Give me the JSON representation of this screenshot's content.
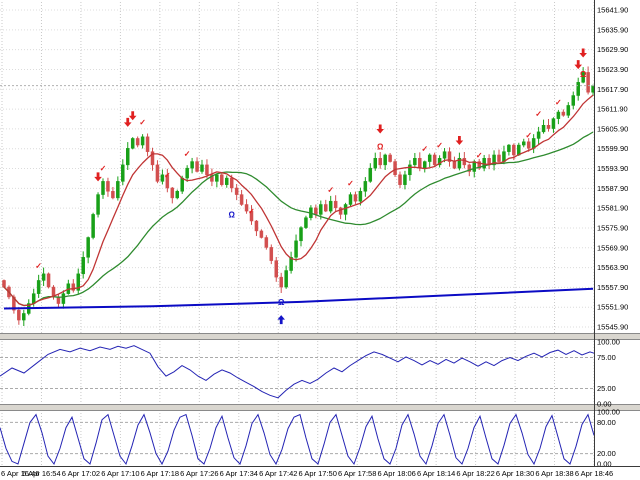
{
  "chart_data": {
    "type": "candlestick",
    "time_axis_labels": [
      "6 Apr 16:46",
      "6 Apr 16:54",
      "6 Apr 17:02",
      "6 Apr 17:10",
      "6 Apr 17:18",
      "6 Apr 17:26",
      "6 Apr 17:34",
      "6 Apr 17:42",
      "6 Apr 17:50",
      "6 Apr 17:58",
      "6 Apr 18:06",
      "6 Apr 18:14",
      "6 Apr 18:22",
      "6 Apr 18:30",
      "6 Apr 18:38",
      "6 Apr 18:46"
    ],
    "main": {
      "price_axis_labels": [
        "15641.90",
        "15635.90",
        "15629.90",
        "15623.90",
        "15617.90",
        "15611.90",
        "15605.90",
        "15599.90",
        "15593.90",
        "15587.90",
        "15581.90",
        "15575.90",
        "15569.90",
        "15563.90",
        "15557.90",
        "15551.90",
        "15545.90"
      ],
      "price_max": 15641.9,
      "price_min": 15545.9,
      "grid": "dotted",
      "bars": {
        "first_open": 15560,
        "closes": [
          15558,
          15555,
          15551,
          15548,
          15550,
          15553,
          15556,
          15560,
          15562,
          15558,
          15555,
          15553,
          15556,
          15559,
          15557,
          15562,
          15567,
          15573,
          15580,
          15586,
          15590,
          15587,
          15585,
          15590,
          15595,
          15600,
          15603,
          15601,
          15603.5,
          15599,
          15595,
          15590,
          15592,
          15588,
          15585,
          15587,
          15591,
          15594,
          15596,
          15593,
          15595,
          15592,
          15590,
          15592,
          15589,
          15591,
          15588,
          15586,
          15583,
          15581,
          15578,
          15575,
          15573,
          15570,
          15566,
          15561,
          15558,
          15563,
          15567,
          15572,
          15576,
          15579,
          15582,
          15580,
          15583,
          15581,
          15584,
          15582,
          15580,
          15583,
          15586,
          15584,
          15587,
          15590,
          15594,
          15597,
          15595,
          15598,
          15596,
          15592,
          15589,
          15592,
          15595,
          15597,
          15594,
          15596,
          15598,
          15595,
          15597,
          15599,
          15596,
          15594,
          15597,
          15595,
          15593,
          15596,
          15594,
          15597,
          15595,
          15598,
          15596,
          15599,
          15601,
          15598,
          15601,
          15602,
          15600,
          15603,
          15605,
          15607,
          15606,
          15609,
          15611,
          15610,
          15613,
          15616,
          15620,
          15623,
          15617,
          15619
        ]
      },
      "overlays": {
        "ma_fast": {
          "type": "sma",
          "period": 8,
          "color": "#c03535"
        },
        "ma_slow": {
          "type": "sma",
          "period": 26,
          "color": "#2f8b2f"
        },
        "trend": {
          "color": "#0b0bc4",
          "points": [
            [
              0,
              15551.5
            ],
            [
              30,
              15552.2
            ],
            [
              60,
              15553.5
            ],
            [
              90,
              15555.5
            ],
            [
              119,
              15557.5
            ]
          ]
        }
      },
      "signals": [
        {
          "bar": 7,
          "price": 15564.5,
          "glyph": "check",
          "color": "#e02020"
        },
        {
          "bar": 19,
          "price": 15590,
          "glyph": "arrow-down",
          "color": "#e02020"
        },
        {
          "bar": 20,
          "price": 15594,
          "glyph": "check",
          "color": "#e02020"
        },
        {
          "bar": 25,
          "price": 15606.5,
          "glyph": "arrow-down",
          "color": "#e02020"
        },
        {
          "bar": 26,
          "price": 15608.5,
          "glyph": "arrow-down",
          "color": "#e02020"
        },
        {
          "bar": 28,
          "price": 15608,
          "glyph": "check",
          "color": "#e02020"
        },
        {
          "bar": 33,
          "price": 15592,
          "glyph": "check",
          "color": "#e02020"
        },
        {
          "bar": 37,
          "price": 15598.5,
          "glyph": "check",
          "color": "#e02020"
        },
        {
          "bar": 46,
          "price": 15580,
          "glyph": "omega",
          "color": "#1414c8"
        },
        {
          "bar": 50,
          "price": 15581,
          "glyph": "check",
          "color": "#e02020"
        },
        {
          "bar": 56,
          "price": 15553.5,
          "glyph": "omega",
          "color": "#1414c8"
        },
        {
          "bar": 56,
          "price": 15549.5,
          "glyph": "arrow-up",
          "color": "#1414c8"
        },
        {
          "bar": 66,
          "price": 15587.5,
          "glyph": "check",
          "color": "#e02020"
        },
        {
          "bar": 70,
          "price": 15589.5,
          "glyph": "check",
          "color": "#e02020"
        },
        {
          "bar": 76,
          "price": 15604.5,
          "glyph": "arrow-down",
          "color": "#e02020"
        },
        {
          "bar": 76,
          "price": 15600.5,
          "glyph": "omega",
          "color": "#e02020"
        },
        {
          "bar": 85,
          "price": 15600,
          "glyph": "check",
          "color": "#e02020"
        },
        {
          "bar": 88,
          "price": 15601,
          "glyph": "check",
          "color": "#e02020"
        },
        {
          "bar": 92,
          "price": 15601,
          "glyph": "arrow-down",
          "color": "#e02020"
        },
        {
          "bar": 96,
          "price": 15598,
          "glyph": "check",
          "color": "#e02020"
        },
        {
          "bar": 106,
          "price": 15604,
          "glyph": "check",
          "color": "#e02020"
        },
        {
          "bar": 108,
          "price": 15610.5,
          "glyph": "check",
          "color": "#e02020"
        },
        {
          "bar": 112,
          "price": 15614,
          "glyph": "check",
          "color": "#e02020"
        },
        {
          "bar": 116,
          "price": 15624,
          "glyph": "arrow-down",
          "color": "#e02020"
        },
        {
          "bar": 117,
          "price": 15627.5,
          "glyph": "arrow-down",
          "color": "#e02020"
        },
        {
          "bar": 117,
          "price": 15622.5,
          "glyph": "omega",
          "color": "#e02020"
        }
      ]
    },
    "sub1": {
      "name": "oscillator-upper",
      "color": "#2424b4",
      "range": [
        0,
        100
      ],
      "levels": [
        75,
        25
      ],
      "axis_labels": [
        [
          "100.00",
          100
        ],
        [
          "75.00",
          75
        ],
        [
          "25.00",
          25
        ],
        [
          "0.00",
          0
        ]
      ],
      "points": [
        [
          0,
          45
        ],
        [
          12,
          58
        ],
        [
          24,
          50
        ],
        [
          36,
          65
        ],
        [
          48,
          80
        ],
        [
          60,
          88
        ],
        [
          70,
          84
        ],
        [
          80,
          90
        ],
        [
          90,
          86
        ],
        [
          100,
          92
        ],
        [
          110,
          88
        ],
        [
          118,
          93
        ],
        [
          126,
          90
        ],
        [
          134,
          94
        ],
        [
          142,
          88
        ],
        [
          150,
          82
        ],
        [
          158,
          60
        ],
        [
          166,
          45
        ],
        [
          174,
          52
        ],
        [
          182,
          62
        ],
        [
          190,
          55
        ],
        [
          198,
          45
        ],
        [
          206,
          38
        ],
        [
          214,
          48
        ],
        [
          222,
          55
        ],
        [
          230,
          50
        ],
        [
          238,
          42
        ],
        [
          246,
          35
        ],
        [
          254,
          28
        ],
        [
          262,
          20
        ],
        [
          270,
          14
        ],
        [
          278,
          10
        ],
        [
          286,
          22
        ],
        [
          294,
          32
        ],
        [
          302,
          38
        ],
        [
          310,
          33
        ],
        [
          318,
          40
        ],
        [
          326,
          50
        ],
        [
          334,
          58
        ],
        [
          342,
          52
        ],
        [
          350,
          62
        ],
        [
          358,
          70
        ],
        [
          366,
          78
        ],
        [
          374,
          84
        ],
        [
          382,
          80
        ],
        [
          390,
          74
        ],
        [
          398,
          68
        ],
        [
          406,
          76
        ],
        [
          414,
          70
        ],
        [
          422,
          63
        ],
        [
          430,
          70
        ],
        [
          438,
          64
        ],
        [
          446,
          72
        ],
        [
          454,
          66
        ],
        [
          462,
          74
        ],
        [
          470,
          68
        ],
        [
          478,
          61
        ],
        [
          486,
          68
        ],
        [
          494,
          62
        ],
        [
          502,
          70
        ],
        [
          510,
          75
        ],
        [
          518,
          70
        ],
        [
          526,
          77
        ],
        [
          534,
          82
        ],
        [
          542,
          76
        ],
        [
          550,
          83
        ],
        [
          558,
          87
        ],
        [
          566,
          80
        ],
        [
          574,
          86
        ],
        [
          582,
          79
        ],
        [
          590,
          84
        ],
        [
          594,
          82
        ]
      ]
    },
    "sub2": {
      "name": "oscillator-lower",
      "color": "#2424b4",
      "range": [
        0,
        100
      ],
      "levels": [
        80,
        20
      ],
      "axis_labels": [
        [
          "100.00",
          100
        ],
        [
          "80.00",
          80
        ],
        [
          "20.00",
          20
        ],
        [
          "0.00",
          0
        ]
      ],
      "points": [
        [
          0,
          70
        ],
        [
          6,
          30
        ],
        [
          12,
          5
        ],
        [
          18,
          0
        ],
        [
          24,
          40
        ],
        [
          30,
          80
        ],
        [
          36,
          95
        ],
        [
          42,
          60
        ],
        [
          48,
          15
        ],
        [
          54,
          0
        ],
        [
          60,
          30
        ],
        [
          66,
          70
        ],
        [
          72,
          90
        ],
        [
          78,
          50
        ],
        [
          84,
          10
        ],
        [
          90,
          0
        ],
        [
          96,
          40
        ],
        [
          102,
          85
        ],
        [
          108,
          95
        ],
        [
          114,
          55
        ],
        [
          120,
          15
        ],
        [
          126,
          0
        ],
        [
          132,
          35
        ],
        [
          138,
          75
        ],
        [
          144,
          95
        ],
        [
          150,
          60
        ],
        [
          156,
          20
        ],
        [
          162,
          0
        ],
        [
          168,
          25
        ],
        [
          174,
          65
        ],
        [
          180,
          90
        ],
        [
          186,
          95
        ],
        [
          192,
          55
        ],
        [
          198,
          10
        ],
        [
          204,
          0
        ],
        [
          210,
          30
        ],
        [
          216,
          70
        ],
        [
          222,
          92
        ],
        [
          228,
          50
        ],
        [
          234,
          12
        ],
        [
          240,
          0
        ],
        [
          246,
          35
        ],
        [
          252,
          78
        ],
        [
          258,
          95
        ],
        [
          264,
          60
        ],
        [
          270,
          18
        ],
        [
          276,
          0
        ],
        [
          282,
          28
        ],
        [
          288,
          68
        ],
        [
          294,
          90
        ],
        [
          300,
          95
        ],
        [
          306,
          50
        ],
        [
          312,
          10
        ],
        [
          318,
          0
        ],
        [
          324,
          38
        ],
        [
          330,
          80
        ],
        [
          336,
          95
        ],
        [
          342,
          55
        ],
        [
          348,
          15
        ],
        [
          354,
          0
        ],
        [
          360,
          32
        ],
        [
          366,
          72
        ],
        [
          372,
          92
        ],
        [
          378,
          48
        ],
        [
          384,
          10
        ],
        [
          390,
          0
        ],
        [
          396,
          30
        ],
        [
          402,
          75
        ],
        [
          408,
          95
        ],
        [
          414,
          58
        ],
        [
          420,
          15
        ],
        [
          426,
          0
        ],
        [
          432,
          35
        ],
        [
          438,
          78
        ],
        [
          444,
          95
        ],
        [
          450,
          55
        ],
        [
          456,
          12
        ],
        [
          462,
          0
        ],
        [
          468,
          30
        ],
        [
          474,
          70
        ],
        [
          480,
          92
        ],
        [
          486,
          50
        ],
        [
          492,
          10
        ],
        [
          498,
          0
        ],
        [
          504,
          36
        ],
        [
          510,
          78
        ],
        [
          516,
          95
        ],
        [
          522,
          60
        ],
        [
          528,
          18
        ],
        [
          534,
          0
        ],
        [
          540,
          30
        ],
        [
          546,
          72
        ],
        [
          552,
          93
        ],
        [
          558,
          52
        ],
        [
          564,
          10
        ],
        [
          570,
          0
        ],
        [
          576,
          34
        ],
        [
          582,
          76
        ],
        [
          588,
          95
        ],
        [
          594,
          55
        ]
      ]
    }
  },
  "colors": {
    "background": "#ffffff",
    "up_candle": "#18a018",
    "down_candle": "#d24f4f",
    "grid": "#c9c9c9",
    "grid_h": "#dcdcdc",
    "axis_text": "#000000",
    "separator_fill": "#d9d6cf",
    "separator_edge": "#8a8a8a",
    "axis_line": "#3a3a3a",
    "level_line": "#aaaaaa",
    "bid_line": "#b0b0b0"
  }
}
